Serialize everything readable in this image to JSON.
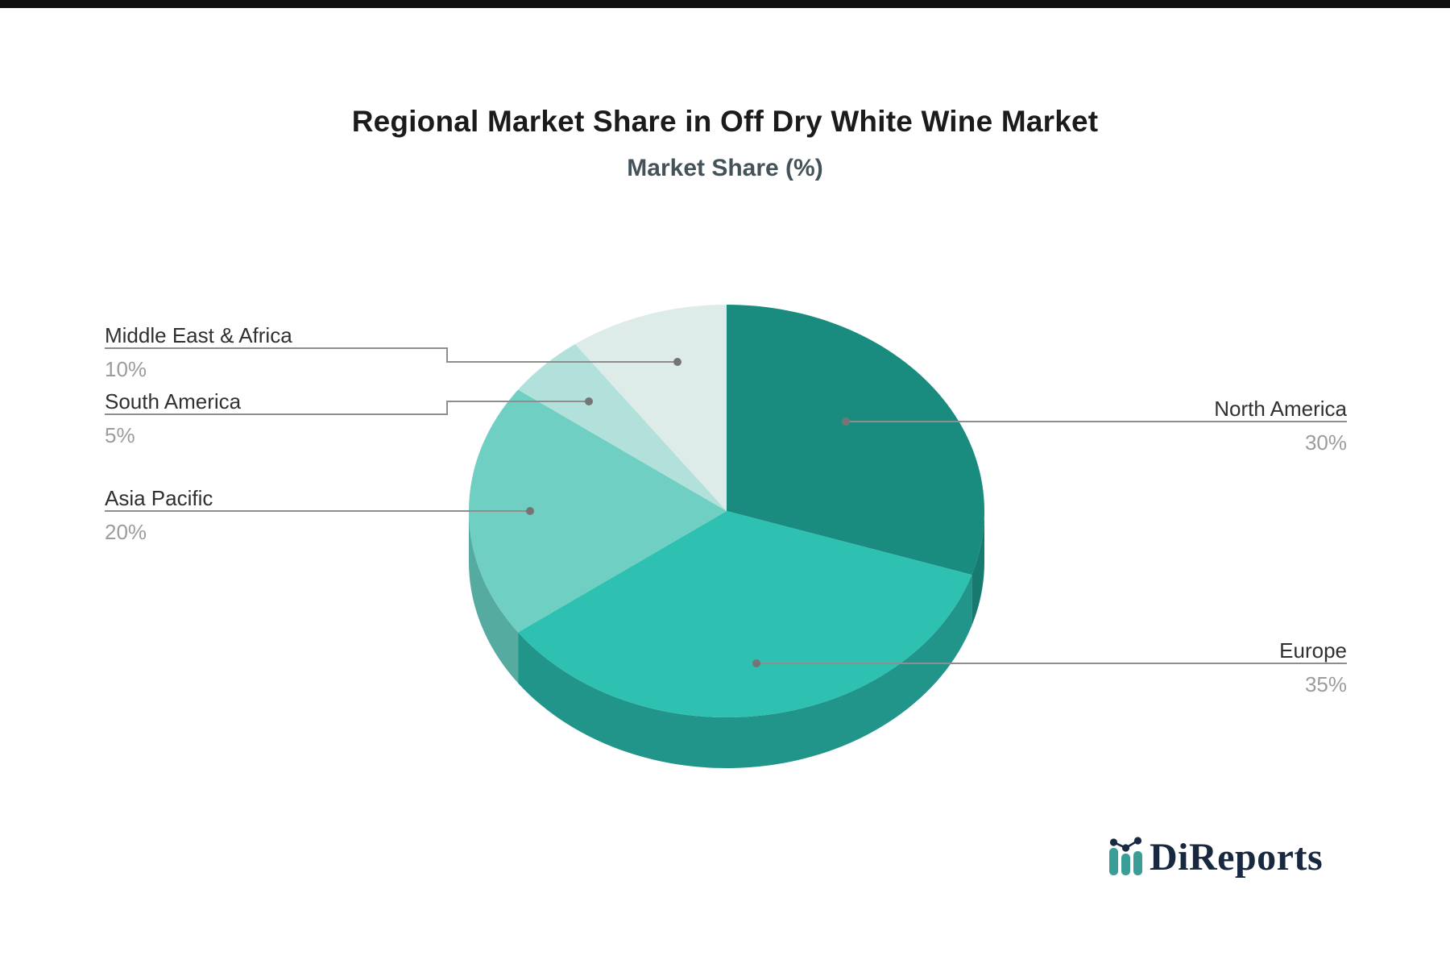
{
  "page": {
    "background": "#ffffff",
    "top_bar_color": "#111111"
  },
  "chart_data": {
    "type": "pie",
    "style": "3d-pie",
    "title": "Regional Market Share in Off Dry White Wine Market",
    "subtitle": "Market Share (%)",
    "unit": "%",
    "start_angle_deg": 0,
    "direction": "clockwise",
    "legend_position": "callout-labels",
    "callout_line_color": "#8e8e8e",
    "callout_dot_color": "#757575",
    "label_color": "#303030",
    "pct_color": "#9c9c9c",
    "slices": [
      {
        "label": "North America",
        "value": 30,
        "pct_label": "30%",
        "color": "#1a8c7f",
        "side_color": "#177a6e",
        "callout_side": "right"
      },
      {
        "label": "Europe",
        "value": 35,
        "pct_label": "35%",
        "color": "#2ec0b1",
        "side_color": "#219589",
        "callout_side": "right"
      },
      {
        "label": "Asia Pacific",
        "value": 20,
        "pct_label": "20%",
        "color": "#6fcfc2",
        "side_color": "#55aba0",
        "callout_side": "left"
      },
      {
        "label": "South America",
        "value": 5,
        "pct_label": "5%",
        "color": "#b2e0da",
        "side_color": "#93bfb8",
        "callout_side": "left"
      },
      {
        "label": "Middle East & Africa",
        "value": 10,
        "pct_label": "10%",
        "color": "#ddece8",
        "side_color": "#b8cdc8",
        "callout_side": "left"
      }
    ]
  },
  "branding": {
    "logo_text": "DiReports",
    "logo_bar_color": "#3a9e96",
    "logo_accent_color": "#182944"
  }
}
